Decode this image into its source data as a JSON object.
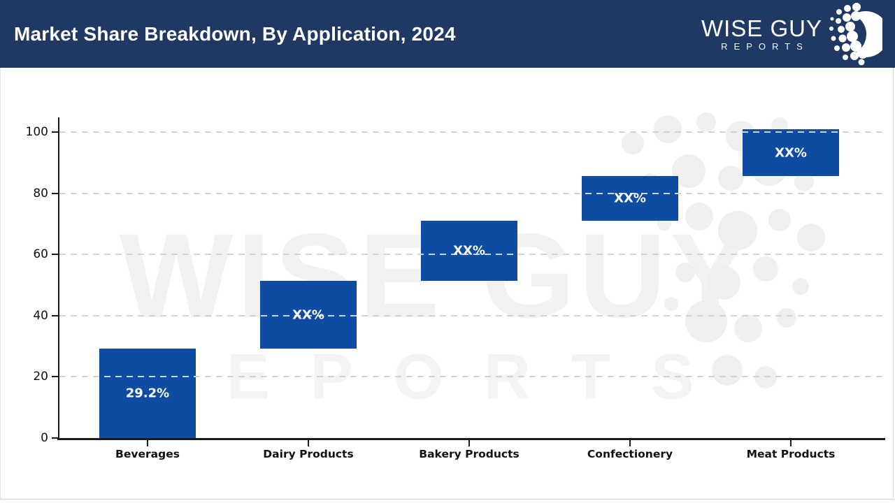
{
  "header": {
    "title": "Market Share Breakdown, By Application, 2024",
    "logo": {
      "line1": "WISE GUY",
      "line2": "REPORTS",
      "icon": "dotted-head-profile-logo"
    }
  },
  "watermark": {
    "line1": "WISE GUY",
    "line2": "REPORTS"
  },
  "colors": {
    "header_navy": "#203864",
    "bar_blue": "#0E4CA1",
    "bar_label_white": "#ffffff",
    "grid_gray": "#d2d2d2",
    "axis_black": "#1a1a1a",
    "watermark_gray": "#f1f1f1"
  },
  "chart_data": {
    "type": "bar",
    "subtype": "waterfall",
    "title": "Market Share Breakdown, By Application, 2024",
    "xlabel": "",
    "ylabel": "",
    "categories": [
      "Beverages",
      "Dairy Products",
      "Bakery Products",
      "Confectionery",
      "Meat Products"
    ],
    "segments": [
      {
        "category": "Beverages",
        "start": 0,
        "end": 29.2,
        "label": "29.2%"
      },
      {
        "category": "Dairy Products",
        "start": 29.2,
        "end": 51.3,
        "label": "XX%"
      },
      {
        "category": "Bakery Products",
        "start": 51.3,
        "end": 71.0,
        "label": "XX%"
      },
      {
        "category": "Confectionery",
        "start": 71.0,
        "end": 85.6,
        "label": "XX%"
      },
      {
        "category": "Meat Products",
        "start": 85.6,
        "end": 100.8,
        "label": "XX%"
      }
    ],
    "y_ticks": [
      0,
      20,
      40,
      60,
      80,
      100
    ],
    "ylim": [
      0,
      104
    ],
    "grid": "horizontal-dashed-over-bars",
    "legend": "none",
    "values_masked": "XX% placeholders except Beverages 29.2%"
  }
}
